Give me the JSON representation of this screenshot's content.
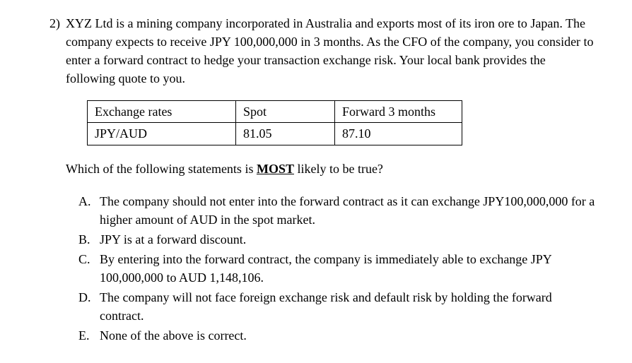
{
  "question": {
    "number": "2)",
    "text": "XYZ Ltd is a mining company incorporated in Australia and exports most of its iron ore to Japan. The company expects to receive JPY 100,000,000 in 3 months. As the CFO of the company, you consider to enter a forward contract to hedge your transaction exchange risk. Your local bank provides the following quote to you."
  },
  "table": {
    "headers": {
      "label": "Exchange rates",
      "spot": "Spot",
      "forward": "Forward 3 months"
    },
    "row": {
      "label": "JPY/AUD",
      "spot": "81.05",
      "forward": "87.10"
    }
  },
  "prompt": {
    "prefix": "Which of the following statements is ",
    "emphasis": "MOST",
    "suffix": " likely to be true?"
  },
  "options": [
    {
      "letter": "A.",
      "text": "The company should not enter into the forward contract as it can exchange JPY100,000,000 for a higher amount of AUD in the spot market."
    },
    {
      "letter": "B.",
      "text": "JPY is at a forward discount."
    },
    {
      "letter": "C.",
      "text": "By entering into the forward contract, the company is immediately able to exchange JPY 100,000,000 to AUD 1,148,106."
    },
    {
      "letter": "D.",
      "text": "The company will not face foreign exchange risk and default risk by holding the forward contract."
    },
    {
      "letter": "E.",
      "text": "None of the above is correct."
    }
  ]
}
